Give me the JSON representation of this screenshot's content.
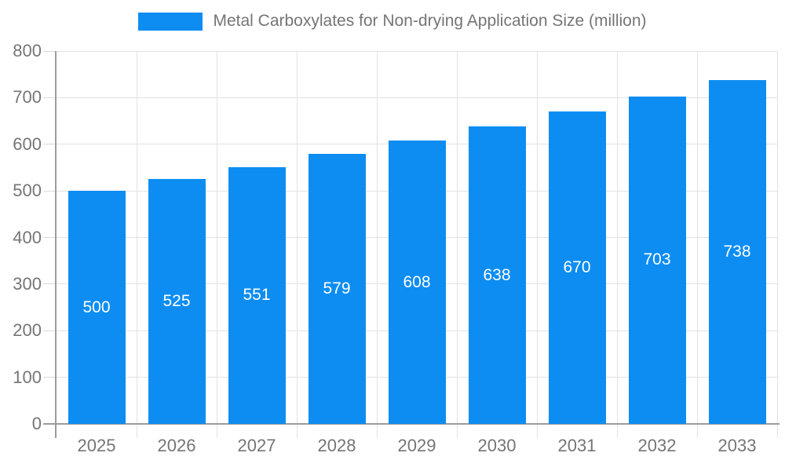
{
  "legend": {
    "label": "Metal Carboxylates for Non-drying Application Size (million)",
    "swatch_color": "#0d8df2"
  },
  "chart_data": {
    "type": "bar",
    "title": "Metal Carboxylates for Non-drying Application Size (million)",
    "categories": [
      "2025",
      "2026",
      "2027",
      "2028",
      "2029",
      "2030",
      "2031",
      "2032",
      "2033"
    ],
    "values": [
      500,
      525,
      551,
      579,
      608,
      638,
      670,
      703,
      738
    ],
    "xlabel": "",
    "ylabel": "",
    "ylim": [
      0,
      800
    ],
    "yticks": [
      0,
      100,
      200,
      300,
      400,
      500,
      600,
      700,
      800
    ],
    "grid": true,
    "legend_position": "top",
    "bar_color": "#0d8df2",
    "value_label_color": "#ffffff"
  },
  "style": {
    "background": "#ffffff",
    "grid_color": "#e2e2e2",
    "axis_color": "#9c9c9c",
    "tick_color": "#d9d9d9",
    "label_color": "#757575"
  }
}
